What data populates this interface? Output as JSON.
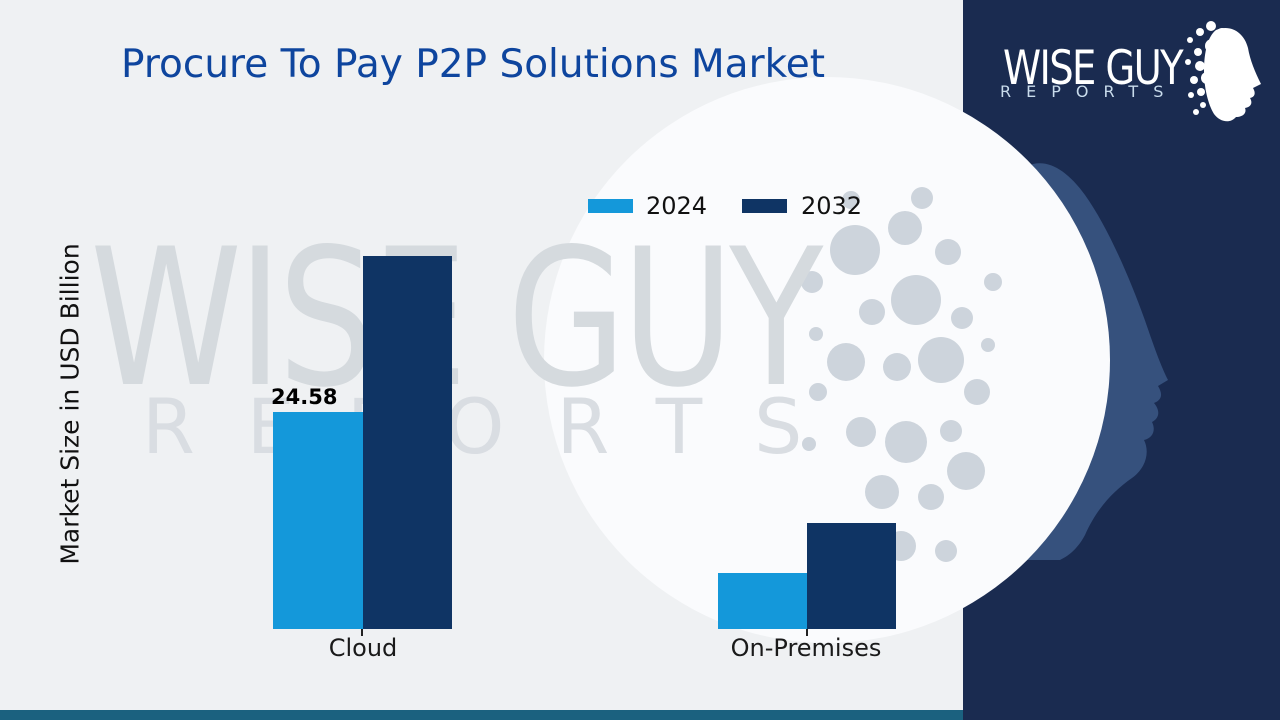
{
  "brand": {
    "name_top": "WISE GUY",
    "name_bottom": "REPORTS"
  },
  "watermark": {
    "name_top": "WISE GUY",
    "name_bottom": "REPORTS"
  },
  "chart_data": {
    "type": "bar",
    "title": "Procure To Pay P2P Solutions Market",
    "title_color": "#0e459e",
    "xlabel": "",
    "ylabel": "Market Size in USD Billion",
    "categories": [
      "Cloud",
      "On-Premises"
    ],
    "series": [
      {
        "name": "2024",
        "color": "#1498da",
        "values": [
          24.58,
          6.3
        ]
      },
      {
        "name": "2032",
        "color": "#0f3464",
        "values": [
          42.2,
          12.0
        ]
      }
    ],
    "value_labels": [
      {
        "category": "Cloud",
        "series": "2024",
        "text": "24.58"
      }
    ],
    "ylim": [
      0,
      45
    ],
    "grid": false,
    "y_axis_ticks_visible": false,
    "legend_position": "top-right"
  },
  "colors": {
    "background": "#eff1f3",
    "brand_panel": "#1a2b50",
    "bottom_strip": "#1b617f",
    "watermark_text": "#d5dade",
    "watermark_head": "#fafbfd",
    "watermark_face": "#36517d"
  }
}
